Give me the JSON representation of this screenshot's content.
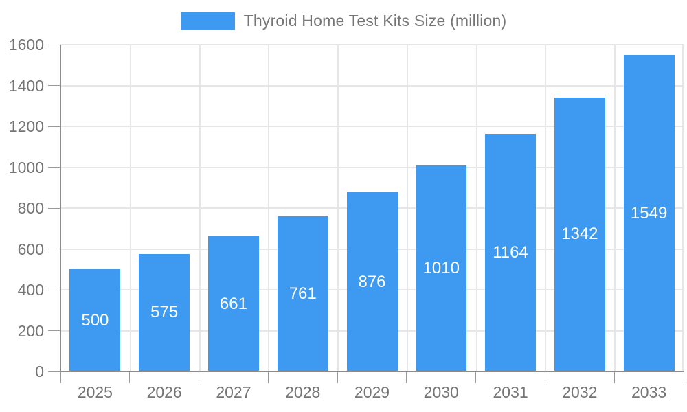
{
  "legend": {
    "label": "Thyroid Home Test Kits Size (million)"
  },
  "colors": {
    "bar": "#3d9af0",
    "grid": "#e6e6e6",
    "axis": "#8c8c8c",
    "tick": "#999999",
    "axis_text": "#757575",
    "value_label_text": "#ffffff",
    "background": "#ffffff"
  },
  "chart_data": {
    "type": "bar",
    "title": "Thyroid Home Test Kits Size (million)",
    "categories": [
      "2025",
      "2026",
      "2027",
      "2028",
      "2029",
      "2030",
      "2031",
      "2032",
      "2033"
    ],
    "series": [
      {
        "name": "Thyroid Home Test Kits Size (million)",
        "values": [
          500,
          575,
          661,
          761,
          876,
          1010,
          1164,
          1342,
          1549
        ]
      }
    ],
    "xlabel": "",
    "ylabel": "",
    "ylim": [
      0,
      1600
    ],
    "ytick_step": 200,
    "yticks": [
      0,
      200,
      400,
      600,
      800,
      1000,
      1200,
      1400,
      1600
    ],
    "grid": true,
    "value_labels": "inside-center",
    "legend_position": "top-center"
  }
}
